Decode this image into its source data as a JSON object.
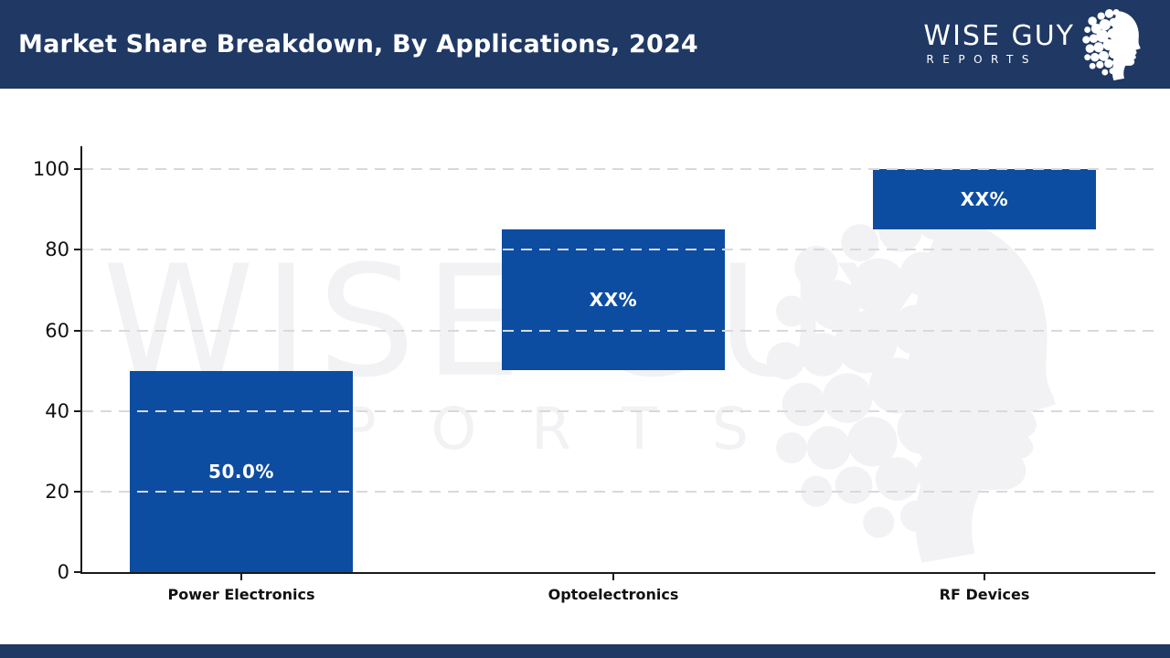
{
  "header": {
    "title": "Market Share Breakdown, By Applications, 2024",
    "logo": {
      "name": "WISE GUY",
      "sub": "REPORTS"
    }
  },
  "watermark": {
    "line1": "WISE GUY",
    "line2": "REPORTS"
  },
  "chart_data": {
    "type": "bar",
    "variant": "stacked_waterfall",
    "title": "Market Share Breakdown, By Applications, 2024",
    "categories": [
      "Power Electronics",
      "Optoelectronics",
      "RF Devices"
    ],
    "values": [
      50,
      35,
      15
    ],
    "bar_starts": [
      0,
      50,
      85
    ],
    "bar_labels": [
      "50.0%",
      "XX%",
      "XX%"
    ],
    "xlabel": "",
    "ylabel": "",
    "ylim": [
      0,
      100
    ],
    "yticks": [
      0,
      20,
      40,
      60,
      80,
      100
    ],
    "grid": "horizontal dashed, drawn above bars",
    "legend": "none",
    "colors": {
      "bar": "#0c4da2",
      "header_bar": "#1f3864",
      "gridline": "#d9d9d9",
      "axis": "#1a1a1a",
      "bar_label_text": "#ffffff",
      "watermark": "#f2f2f5"
    }
  }
}
